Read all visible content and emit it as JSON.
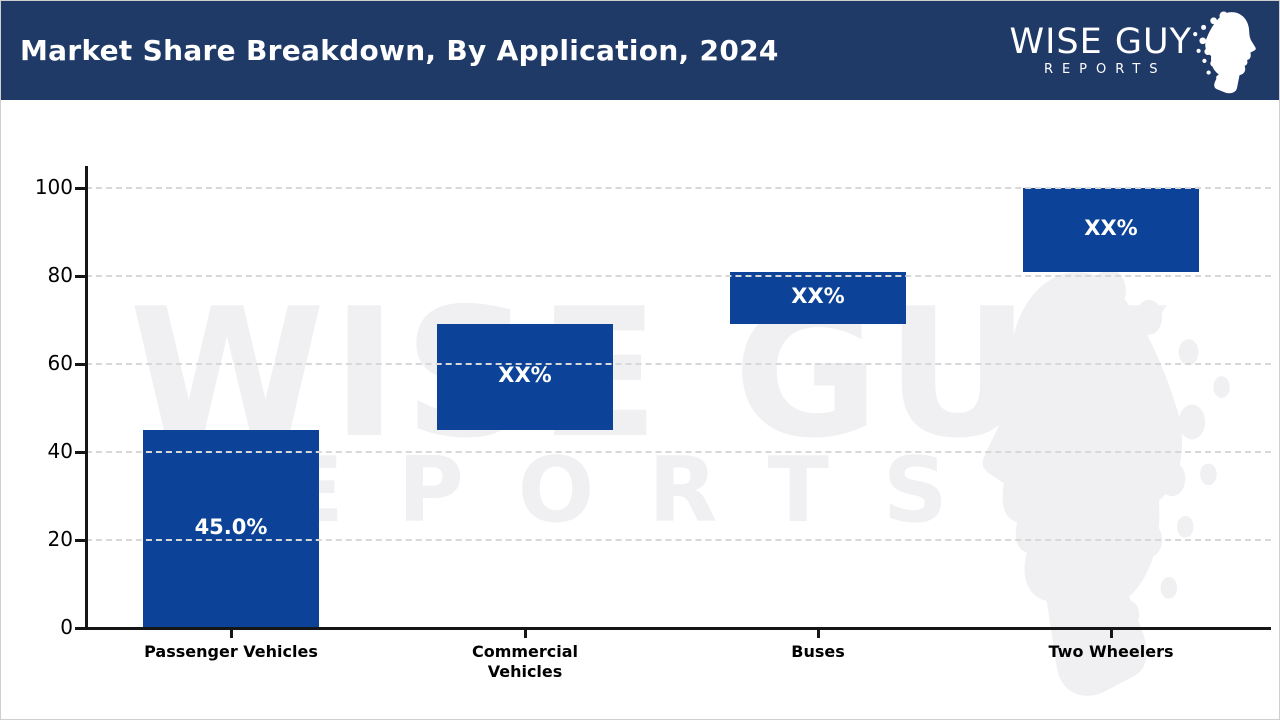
{
  "header": {
    "title": "Market Share Breakdown, By Application, 2024",
    "logo": {
      "line1": "WISE GUY",
      "line2": "REPORTS"
    }
  },
  "watermark": {
    "line1": "WISE GUY",
    "line2": "REPORTS"
  },
  "chart_data": {
    "type": "bar",
    "subtype": "waterfall",
    "title": "Market Share Breakdown, By Application, 2024",
    "categories": [
      "Passenger Vehicles",
      "Commercial Vehicles",
      "Buses",
      "Two Wheelers"
    ],
    "category_lines": [
      [
        "Passenger Vehicles"
      ],
      [
        "Commercial",
        "Vehicles"
      ],
      [
        "Buses"
      ],
      [
        "Two Wheelers"
      ]
    ],
    "segments": [
      {
        "category": "Passenger Vehicles",
        "start": 0,
        "end": 45,
        "value_label": "45.0%"
      },
      {
        "category": "Commercial Vehicles",
        "start": 45,
        "end": 69,
        "value_label": "XX%"
      },
      {
        "category": "Buses",
        "start": 69,
        "end": 81,
        "value_label": "XX%"
      },
      {
        "category": "Two Wheelers",
        "start": 81,
        "end": 100,
        "value_label": "XX%"
      }
    ],
    "ylim": [
      0,
      100
    ],
    "yticks": [
      0,
      20,
      40,
      60,
      80,
      100
    ],
    "xlabel": "",
    "ylabel": "",
    "grid": "dashed-horizontal-over-bars",
    "legend": "none"
  },
  "colors": {
    "header_bg": "#203A68",
    "bar": "#0C4398",
    "grid": "#d8d8d8",
    "axis": "#161616",
    "watermark": "#f0f0f3",
    "frame_border": "#cfcfcf",
    "title_text": "#ffffff",
    "label_text": "#000000"
  }
}
